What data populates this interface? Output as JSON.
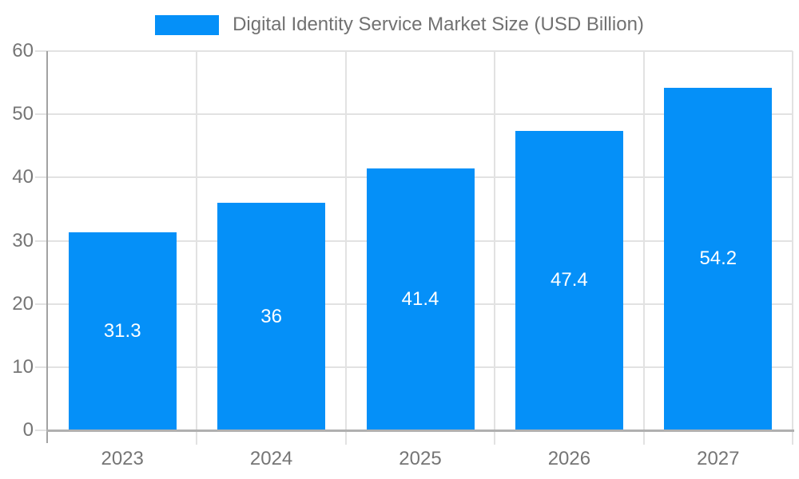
{
  "chart_data": {
    "type": "bar",
    "title": "Digital Identity Service Market Size (USD Billion)",
    "categories": [
      "2023",
      "2024",
      "2025",
      "2026",
      "2027"
    ],
    "values": [
      31.3,
      36,
      41.4,
      47.4,
      54.2
    ],
    "value_labels": [
      "31.3",
      "36",
      "41.4",
      "47.4",
      "54.2"
    ],
    "xlabel": "",
    "ylabel": "",
    "ylim": [
      0,
      60
    ],
    "yticks": [
      0,
      10,
      20,
      30,
      40,
      50,
      60
    ],
    "grid": true,
    "legend_position": "top"
  },
  "colors": {
    "bar": "#0590f8",
    "grid": "#e2e2e2",
    "tick": "#e2e2e2",
    "axis_line": "#a2a2a2",
    "baseline": "#b0b0b0",
    "axis_text": "#757575",
    "legend_text": "#717171",
    "value_text": "#ffffff",
    "background": "#ffffff"
  }
}
